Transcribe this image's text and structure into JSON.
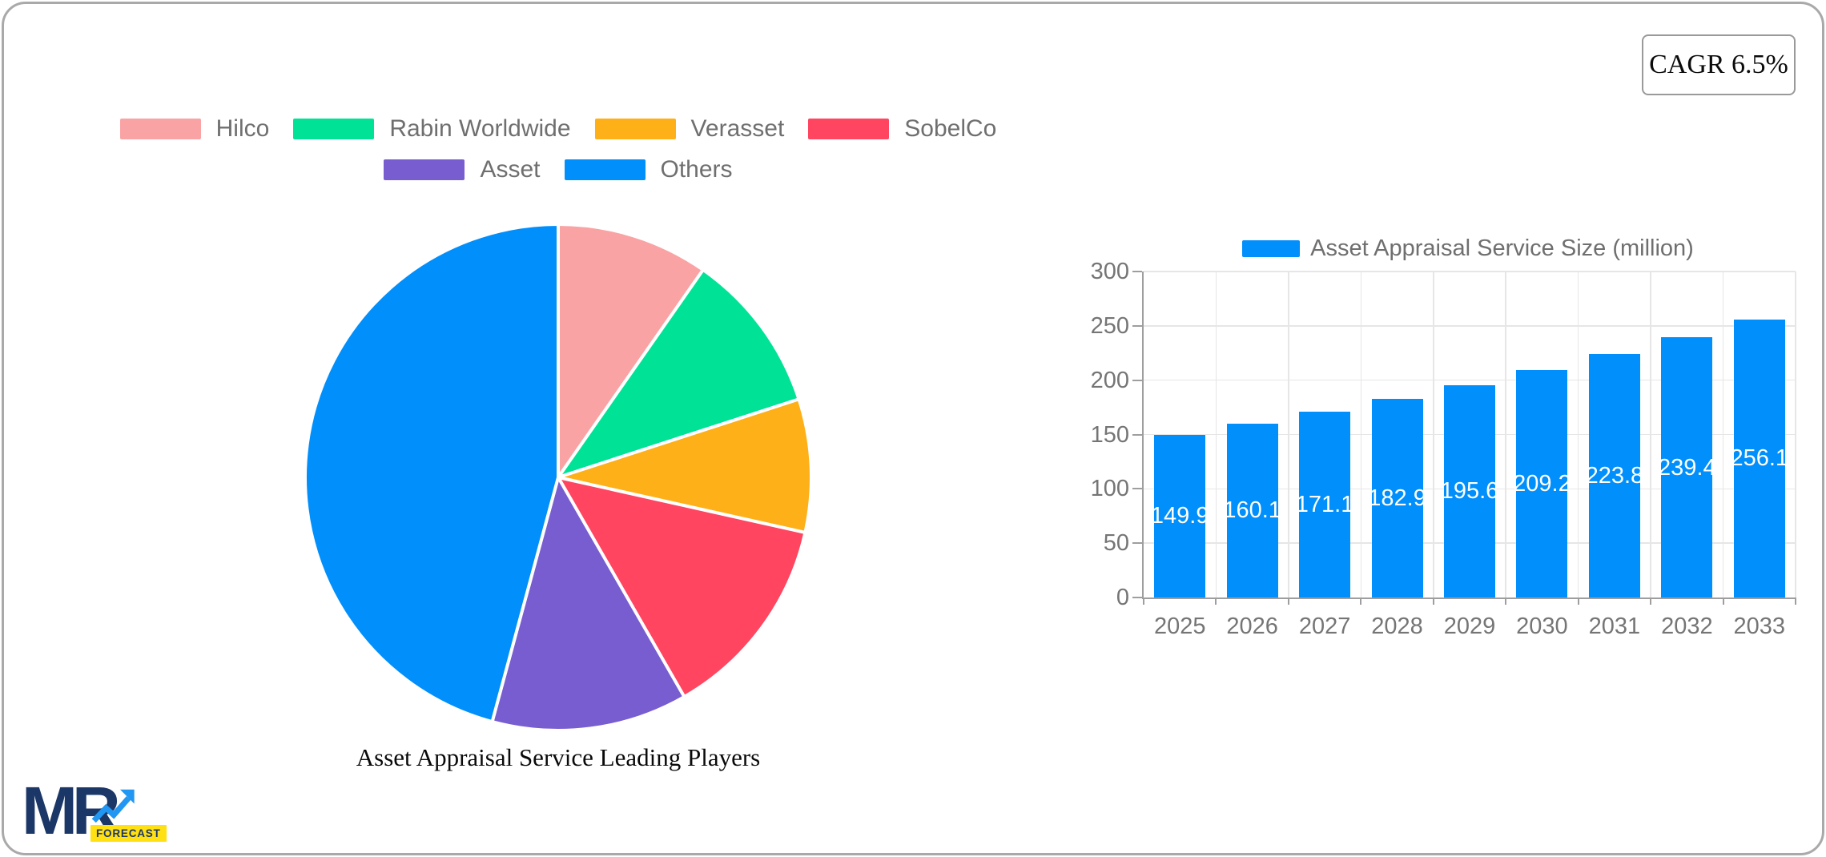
{
  "cagr_badge": {
    "label": "CAGR 6.5%"
  },
  "chart_data": [
    {
      "type": "pie",
      "title": "Asset Appraisal Service Leading Players",
      "legend_position": "top",
      "legend_row_break": 4,
      "values_are": "percent (estimated from slice angles)",
      "start_angle_deg": 0,
      "direction": "clockwise",
      "slices": [
        {
          "label": "Hilco",
          "value": 9.7,
          "color": "#F9A3A4"
        },
        {
          "label": "Rabin Worldwide",
          "value": 10.3,
          "color": "#00E396"
        },
        {
          "label": "Verasset",
          "value": 8.5,
          "color": "#FEB019"
        },
        {
          "label": "SobelCo",
          "value": 13.2,
          "color": "#FF4560"
        },
        {
          "label": "Asset",
          "value": 12.5,
          "color": "#775DD0"
        },
        {
          "label": "Others",
          "value": 45.8,
          "color": "#008FFB"
        }
      ]
    },
    {
      "type": "bar",
      "legend": "Asset Appraisal Service Size (million)",
      "categories": [
        "2025",
        "2026",
        "2027",
        "2028",
        "2029",
        "2030",
        "2031",
        "2032",
        "2033"
      ],
      "values": [
        149.9,
        160.1,
        171.1,
        182.9,
        195.6,
        209.2,
        223.8,
        239.4,
        256.1
      ],
      "bar_color": "#008FFB",
      "value_label_color": "#ffffff",
      "value_label_position": "inside-center",
      "ylim": [
        0,
        300
      ],
      "ytick_step": 50,
      "grid": true,
      "legend_position": "top"
    }
  ],
  "logo": {
    "text": "MR",
    "badge": "FORECAST",
    "arrow_icon": "trend-up-arrow",
    "colors": {
      "text": "#1b3767",
      "arrow": "#2196f3",
      "badge_bg": "#ffe013",
      "badge_text": "#1b3767"
    }
  },
  "theme": {
    "frame_border": "#a9a9a9",
    "axis_line": "#9e9e9e",
    "axis_text": "#757575",
    "legend_text": "#6f6f6f",
    "gridline": "#e6e6e6",
    "background": "#ffffff",
    "title_color": "#0a0a0a"
  }
}
